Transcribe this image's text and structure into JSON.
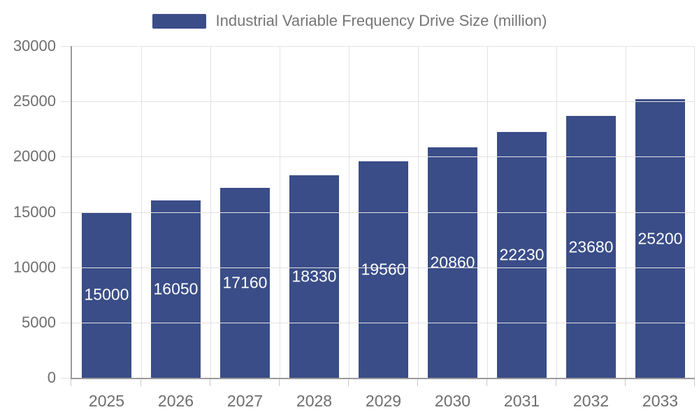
{
  "chart_data": {
    "type": "bar",
    "title": "Industrial Variable Frequency Drive Size (million)",
    "legend_label": "Industrial Variable Frequency Drive Size (million)",
    "legend_position": "top",
    "categories": [
      "2025",
      "2026",
      "2027",
      "2028",
      "2029",
      "2030",
      "2031",
      "2032",
      "2033"
    ],
    "values": [
      15000,
      16050,
      17160,
      18330,
      19560,
      20860,
      22230,
      23680,
      25200
    ],
    "xlabel": "",
    "ylabel": "",
    "ylim": [
      0,
      30000
    ],
    "yticks": [
      0,
      5000,
      10000,
      15000,
      20000,
      25000,
      30000
    ],
    "grid": true,
    "value_labels": "inside-center",
    "colors": {
      "bar": "#3A4D88",
      "bar_label": "#FFFFFF",
      "axis_line": "#9A9A9A",
      "gridline": "#E2E2E2",
      "tick": "#C9C9C9",
      "axis_text": "#6E6E6E",
      "legend_text": "#757575",
      "background": "#FFFFFF"
    }
  }
}
